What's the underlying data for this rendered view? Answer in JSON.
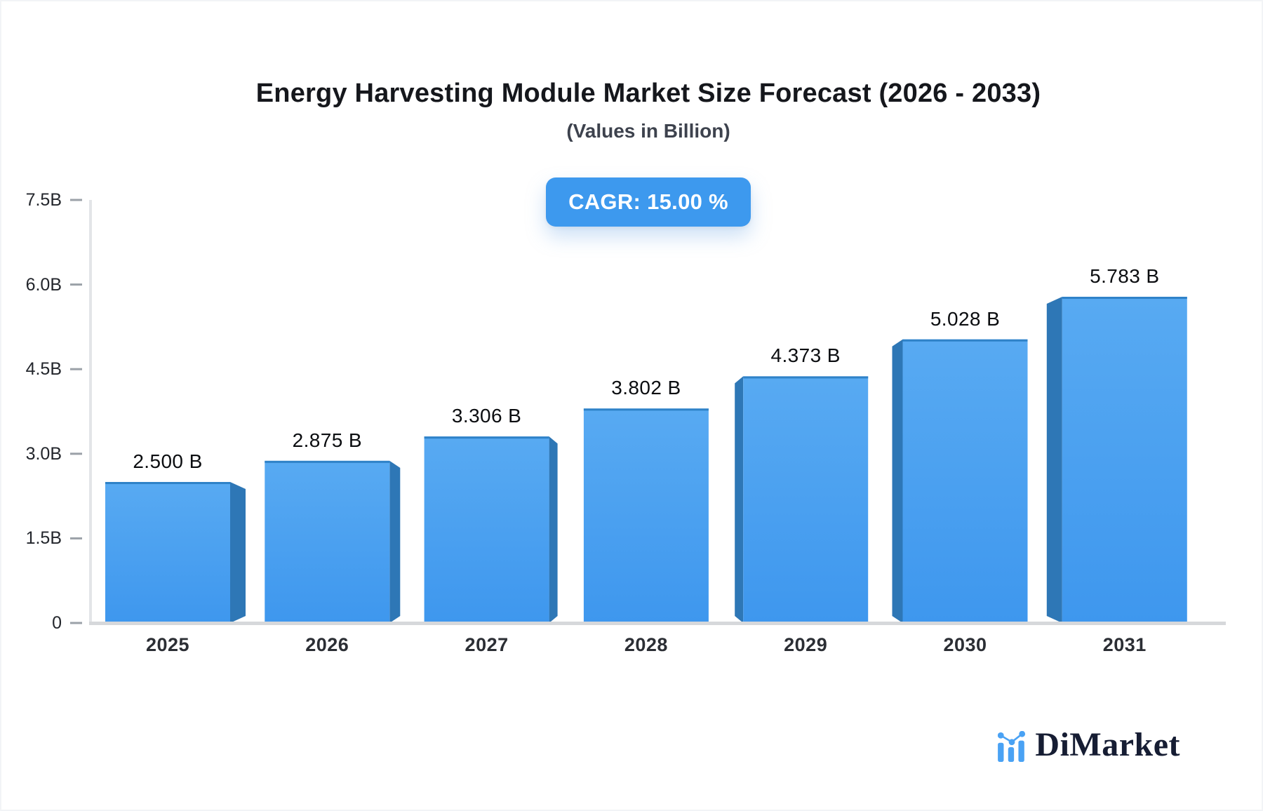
{
  "header": {
    "title": "Energy Harvesting Module Market Size Forecast (2026 - 2033)",
    "subtitle": "(Values in Billion)",
    "badge": "CAGR: 15.00 %"
  },
  "chart_data": {
    "type": "bar",
    "title": "Energy Harvesting Module Market Size Forecast (2026 - 2033)",
    "subtitle": "(Values in Billion)",
    "categories": [
      "2025",
      "2026",
      "2027",
      "2028",
      "2029",
      "2030",
      "2031"
    ],
    "values": [
      2.5,
      2.875,
      3.306,
      3.802,
      4.373,
      5.028,
      5.783
    ],
    "value_labels": [
      "2.500 B",
      "2.875 B",
      "3.306 B",
      "3.802 B",
      "4.373 B",
      "5.028 B",
      "5.783 B"
    ],
    "xlabel": "",
    "ylabel": "",
    "ylim": [
      0,
      7.5
    ],
    "y_ticks": [
      {
        "label": "7.5B",
        "value": 7.5
      },
      {
        "label": "6.0B",
        "value": 6.0
      },
      {
        "label": "4.5B",
        "value": 4.5
      },
      {
        "label": "3.0B",
        "value": 3.0
      },
      {
        "label": "1.5B",
        "value": 1.5
      },
      {
        "label": "0",
        "value": 0
      }
    ],
    "grid": false,
    "legend": null,
    "cagr": "15.00 %"
  },
  "colors": {
    "bar_top": "#58aaf2",
    "bar_bottom": "#3e97ee",
    "bar_side": "#2e77b6",
    "bar_cap": "#2f82c8",
    "badge_bg": "#3d99ee",
    "axis_line": "#e3e5e8",
    "baseline": "#d6d8db",
    "tick": "#9ba1a8",
    "logo_blue": "#4aa2f4",
    "logo_text": "#161d33"
  },
  "logo": {
    "name": "DiMarket"
  }
}
